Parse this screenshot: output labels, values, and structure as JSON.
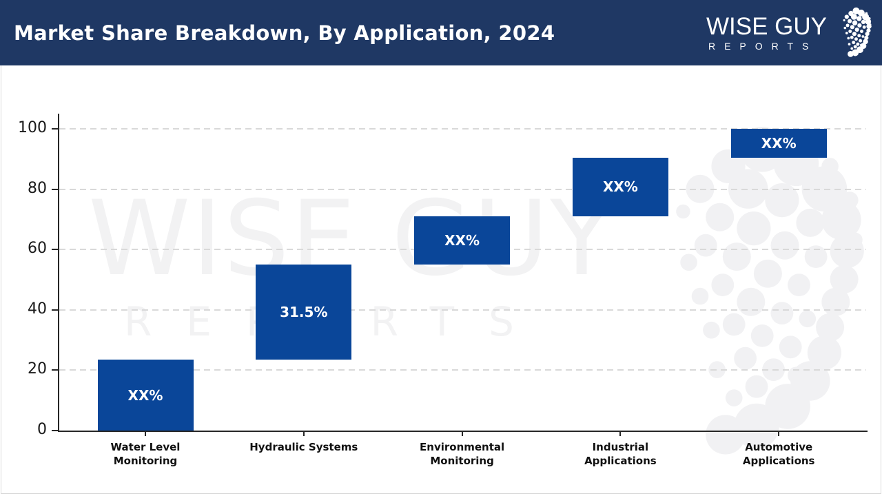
{
  "page": {
    "bg_color": "#ffffff",
    "frame_color": "#d9d9d9"
  },
  "header": {
    "bg_color": "#1f3864",
    "title": "Market Share Breakdown, By Application, 2024",
    "logo": {
      "line1": "WISE GUY",
      "line2": "REPORTS",
      "head_icon": "dotted-head-profile"
    }
  },
  "watermark": {
    "line1": "WISE GUY",
    "line2": "REPORTS",
    "head_icon": "dotted-head-profile",
    "color": "#f2f2f3"
  },
  "chart_data": {
    "type": "bar",
    "subtype": "waterfall",
    "title": "Market Share Breakdown, By Application, 2024",
    "categories": [
      "Water Level Monitoring",
      "Hydraulic Systems",
      "Environmental Monitoring",
      "Industrial Applications",
      "Automotive Applications"
    ],
    "category_label_lines": [
      [
        "Water Level",
        "Monitoring"
      ],
      [
        "Hydraulic Systems"
      ],
      [
        "Environmental",
        "Monitoring"
      ],
      [
        "Industrial",
        "Applications"
      ],
      [
        "Automotive",
        "Applications"
      ]
    ],
    "bars": [
      {
        "category": "Water Level Monitoring",
        "start": 0,
        "end": 23.5,
        "value_label": "XX%"
      },
      {
        "category": "Hydraulic Systems",
        "start": 23.5,
        "end": 55,
        "value_label": "31.5%"
      },
      {
        "category": "Environmental Monitoring",
        "start": 55,
        "end": 71,
        "value_label": "XX%"
      },
      {
        "category": "Industrial Applications",
        "start": 71,
        "end": 90.5,
        "value_label": "XX%"
      },
      {
        "category": "Automotive Applications",
        "start": 90.5,
        "end": 100,
        "value_label": "XX%"
      }
    ],
    "ylim": [
      0,
      100
    ],
    "yticks": [
      "0",
      "20",
      "40",
      "60",
      "80",
      "100"
    ],
    "xlabel": "",
    "ylabel": "",
    "grid": "horizontal-dashed",
    "legend": "none",
    "bar_color": "#0a4699",
    "bar_label_color": "#ffffff",
    "axis_color": "#262626",
    "grid_color": "#d9d9d9"
  }
}
